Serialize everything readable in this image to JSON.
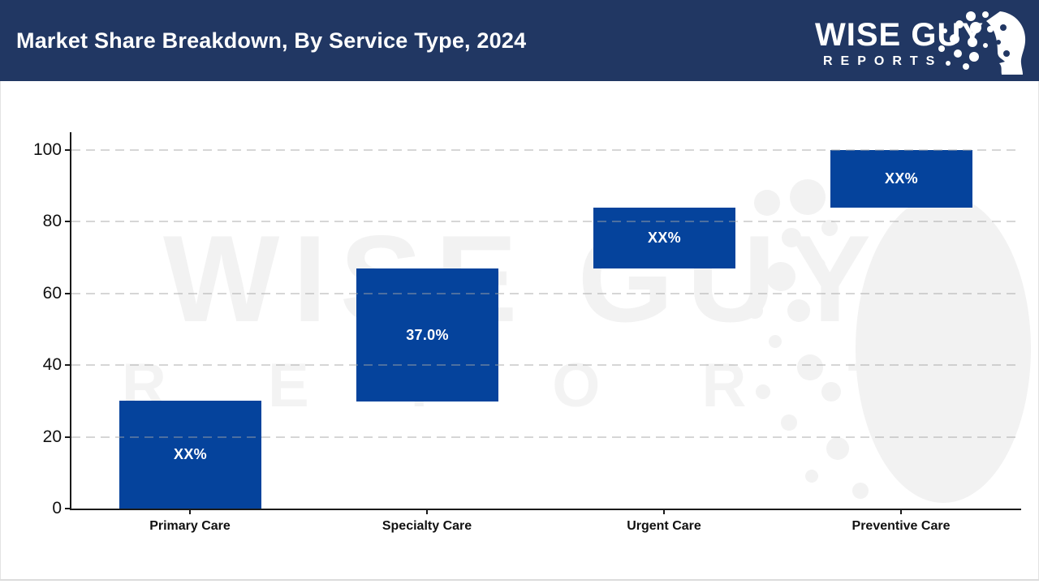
{
  "header": {
    "title": "Market Share Breakdown, By Service Type, 2024",
    "bg_color": "#213763",
    "logo": {
      "line1": "WISE GUY",
      "line2": "R E P O R T S"
    }
  },
  "watermark": {
    "line1": "WISE GUY",
    "line2": "R E P O R T S"
  },
  "chart_data": {
    "type": "bar",
    "subtype": "waterfall",
    "title": "Market Share Breakdown, By Service Type, 2024",
    "categories": [
      "Primary Care",
      "Specialty Care",
      "Urgent Care",
      "Preventive Care"
    ],
    "segments": [
      {
        "category": "Primary Care",
        "start": 0,
        "end": 30,
        "label": "XX%"
      },
      {
        "category": "Specialty Care",
        "start": 30,
        "end": 67,
        "label": "37.0%"
      },
      {
        "category": "Urgent Care",
        "start": 67,
        "end": 84,
        "label": "XX%"
      },
      {
        "category": "Preventive Care",
        "start": 84,
        "end": 100,
        "label": "XX%"
      }
    ],
    "xlabel": "",
    "ylabel": "",
    "ylim": [
      0,
      100
    ],
    "yticks": [
      0,
      20,
      40,
      60,
      80,
      100
    ],
    "grid": "horizontal-dashed",
    "legend": "none",
    "bar_color": "#05439c",
    "bar_label_color": "#ffffff"
  }
}
